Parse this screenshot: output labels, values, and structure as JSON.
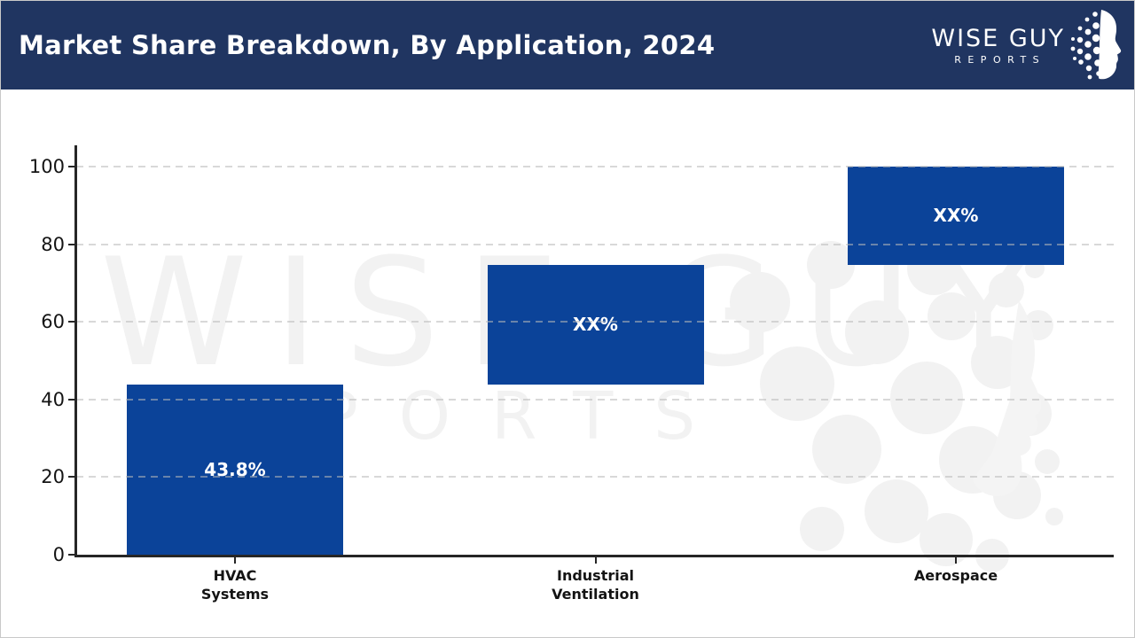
{
  "header": {
    "title": "Market Share Breakdown, By Application, 2024",
    "logo": {
      "line1": "WISE GUY",
      "line2": "REPORTS"
    }
  },
  "watermark": {
    "line1": "WISE GUY",
    "line2": "REPORTS"
  },
  "colors": {
    "header_bg": "#203561",
    "bar": "#0b4399",
    "axis": "#262626",
    "grid": "#d9d9d9",
    "bar_label": "#ffffff",
    "watermark": "#f2f2f2",
    "page_border": "#c9c9c9"
  },
  "chart_data": {
    "type": "bar",
    "subtype": "waterfall",
    "title": "Market Share Breakdown, By Application, 2024",
    "categories": [
      "HVAC Systems",
      "Industrial Ventilation",
      "Aerospace"
    ],
    "segments": [
      {
        "category": "HVAC Systems",
        "start": 0,
        "end": 43.8,
        "label": "43.8%"
      },
      {
        "category": "Industrial Ventilation",
        "start": 43.8,
        "end": 74.7,
        "label": "XX%"
      },
      {
        "category": "Aerospace",
        "start": 74.7,
        "end": 100,
        "label": "XX%"
      }
    ],
    "xlabel": "",
    "ylabel": "",
    "ylim": [
      0,
      100
    ],
    "yticks": [
      0,
      20,
      40,
      60,
      80,
      100
    ],
    "grid": "horizontal-dashed",
    "legend": "none"
  }
}
